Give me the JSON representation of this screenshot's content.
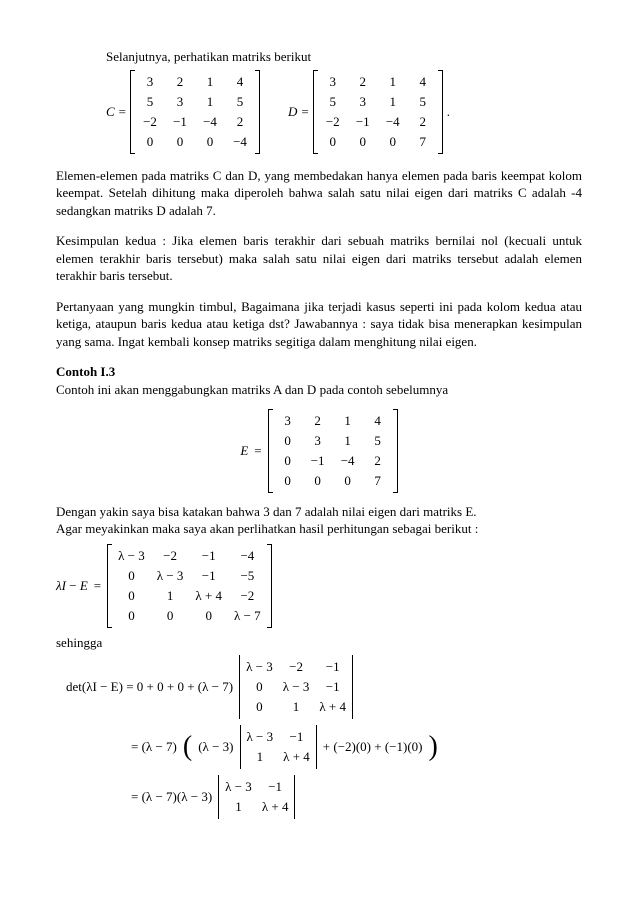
{
  "text": {
    "intro1": "Selanjutnya, perhatikan matriks berikut",
    "para1": "Elemen-elemen pada matriks C dan D, yang membedakan hanya elemen pada baris keempat kolom keempat. Setelah dihitung maka diperoleh bahwa salah satu nilai eigen dari matriks C adalah -4 sedangkan matriks D adalah 7.",
    "para2": "Kesimpulan kedua : Jika elemen baris terakhir dari sebuah matriks bernilai nol (kecuali untuk elemen terakhir baris tersebut) maka salah satu nilai eigen dari matriks tersebut adalah elemen terakhir baris tersebut.",
    "para3": "Pertanyaan yang mungkin timbul, Bagaimana jika terjadi kasus seperti ini pada kolom kedua atau ketiga, ataupun baris kedua atau ketiga  dst? Jawabannya : saya tidak bisa menerapkan kesimpulan yang sama. Ingat kembali konsep matriks segitiga dalam menghitung nilai eigen.",
    "contoh_heading": "Contoh I.3",
    "contoh_intro": "Contoh ini akan menggabungkan matriks A dan D pada contoh sebelumnya",
    "para4": "Dengan yakin saya bisa katakan bahwa 3 dan 7 adalah nilai eigen dari matriks E.",
    "para5": "Agar meyakinkan maka saya akan perlihatkan hasil perhitungan sebagai berikut :",
    "sehingga": "sehingga",
    "dot": "."
  },
  "labels": {
    "C": "C",
    "D": "D",
    "E": "E",
    "eq": "=",
    "lambda": "λ",
    "I": "I",
    "minus": "−",
    "det": "det"
  },
  "matrices": {
    "C": [
      [
        "3",
        "2",
        "1",
        "4"
      ],
      [
        "5",
        "3",
        "1",
        "5"
      ],
      [
        "−2",
        "−1",
        "−4",
        "2"
      ],
      [
        "0",
        "0",
        "0",
        "−4"
      ]
    ],
    "D": [
      [
        "3",
        "2",
        "1",
        "4"
      ],
      [
        "5",
        "3",
        "1",
        "5"
      ],
      [
        "−2",
        "−1",
        "−4",
        "2"
      ],
      [
        "0",
        "0",
        "0",
        "7"
      ]
    ],
    "E": [
      [
        "3",
        "2",
        "1",
        "4"
      ],
      [
        "0",
        "3",
        "1",
        "5"
      ],
      [
        "0",
        "−1",
        "−4",
        "2"
      ],
      [
        "0",
        "0",
        "0",
        "7"
      ]
    ],
    "lIminusE": [
      [
        "λ − 3",
        "−2",
        "−1",
        "−4"
      ],
      [
        "0",
        "λ − 3",
        "−1",
        "−5"
      ],
      [
        "0",
        "1",
        "λ + 4",
        "−2"
      ],
      [
        "0",
        "0",
        "0",
        "λ − 7"
      ]
    ],
    "det3": [
      [
        "λ − 3",
        "−2",
        "−1"
      ],
      [
        "0",
        "λ − 3",
        "−1"
      ],
      [
        "0",
        "1",
        "λ + 4"
      ]
    ],
    "det2a": [
      [
        "λ − 3",
        "−1"
      ],
      [
        "1",
        "λ + 4"
      ]
    ],
    "det2b": [
      [
        "λ − 3",
        "−1"
      ],
      [
        "1",
        "λ + 4"
      ]
    ]
  },
  "eqs": {
    "line1_pre": "det(λI − E) = 0 + 0 + 0 + (λ − 7)",
    "line2_pre": "= (λ − 7)",
    "line2_open": "(",
    "line2_fac": "(λ − 3)",
    "line2_tail": "+ (−2)(0) + (−1)(0)",
    "line2_close": ")",
    "line3_pre": "= (λ − 7)(λ − 3)"
  },
  "style": {
    "font_family": "Times New Roman",
    "font_size_pt": 11,
    "text_color": "#000000",
    "background": "#ffffff"
  }
}
